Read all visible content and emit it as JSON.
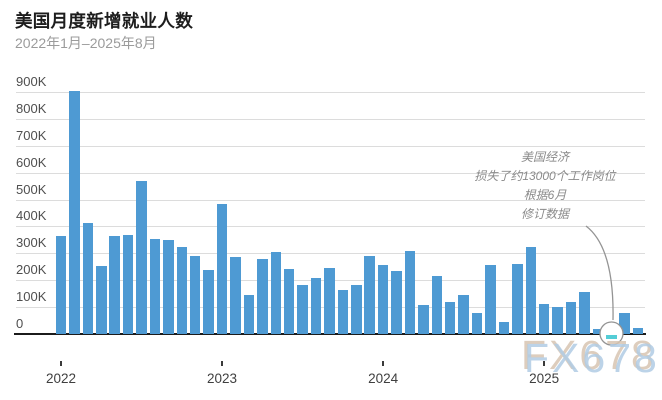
{
  "header": {
    "title": "美国月度新增就业人数",
    "subtitle": "2022年1月–2025年8月"
  },
  "chart_data": {
    "type": "bar",
    "title": "美国月度新增就业人数",
    "subtitle": "2022年1月–2025年8月",
    "unit": "thousands of jobs (K)",
    "grid": "horizontal gridlines on",
    "legend_position": "none",
    "ylim_thousands": [
      0,
      900
    ],
    "y_ticks": [
      "900K",
      "800K",
      "700K",
      "600K",
      "500K",
      "400K",
      "300K",
      "200K",
      "100K",
      "0"
    ],
    "x_year_ticks": [
      "2022",
      "2023",
      "2024",
      "2025"
    ],
    "months": [
      "2022-01",
      "2022-02",
      "2022-03",
      "2022-04",
      "2022-05",
      "2022-06",
      "2022-07",
      "2022-08",
      "2022-09",
      "2022-10",
      "2022-11",
      "2022-12",
      "2023-01",
      "2023-02",
      "2023-03",
      "2023-04",
      "2023-05",
      "2023-06",
      "2023-07",
      "2023-08",
      "2023-09",
      "2023-10",
      "2023-11",
      "2023-12",
      "2024-01",
      "2024-02",
      "2024-03",
      "2024-04",
      "2024-05",
      "2024-06",
      "2024-07",
      "2024-08",
      "2024-09",
      "2024-10",
      "2024-11",
      "2024-12",
      "2025-01",
      "2025-02",
      "2025-03",
      "2025-04",
      "2025-05",
      "2025-06",
      "2025-07",
      "2025-08"
    ],
    "values_thousands": [
      364,
      904,
      414,
      254,
      364,
      370,
      568,
      352,
      350,
      324,
      290,
      239,
      482,
      287,
      146,
      278,
      306,
      240,
      184,
      210,
      246,
      165,
      182,
      290,
      256,
      236,
      310,
      108,
      216,
      118,
      144,
      78,
      255,
      43,
      261,
      323,
      111,
      102,
      120,
      158,
      19,
      -13,
      79,
      22
    ],
    "highlight": {
      "month": "2025-06",
      "index": 41,
      "value_thousands": -13,
      "style": "cyan bar below zero line, circled"
    },
    "colors": {
      "bar": "#4e9ad3",
      "highlight_bar": "#54cdd6",
      "gridline": "#dcdcdc",
      "zero_axis": "#1b1b1b",
      "annotation_text": "#8a8a8a",
      "circle_stroke": "#949494"
    },
    "annotation": {
      "text": "美国经济\n损失了约13000个工作岗位\n根据6月\n修订数据",
      "target_month": "2025-06"
    }
  },
  "watermark": {
    "text": "FX678"
  }
}
